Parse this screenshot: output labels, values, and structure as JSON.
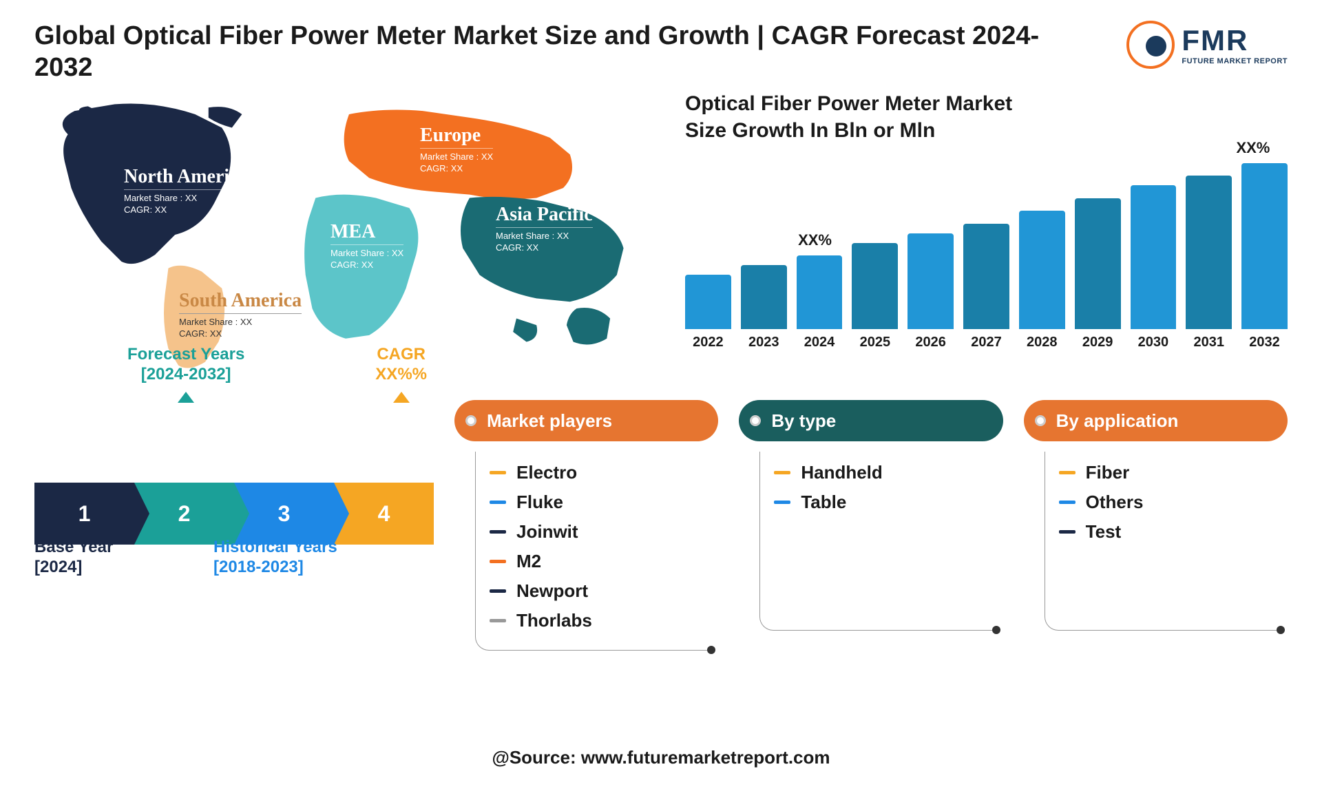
{
  "title": "Global Optical Fiber Power Meter Market Size and Growth | CAGR Forecast 2024-2032",
  "logo": {
    "acronym": "FMR",
    "subtitle": "FUTURE MARKET REPORT"
  },
  "map": {
    "regions": [
      {
        "name": "North America",
        "share": "Market Share : XX",
        "cagr": "CAGR: XX",
        "color": "#1b2845"
      },
      {
        "name": "South America",
        "share": "Market Share : XX",
        "cagr": "CAGR: XX",
        "color": "#f5c38b"
      },
      {
        "name": "Europe",
        "share": "Market Share : XX",
        "cagr": "CAGR: XX",
        "color": "#f37021"
      },
      {
        "name": "MEA",
        "share": "Market Share : XX",
        "cagr": "CAGR: XX",
        "color": "#5cc5c9"
      },
      {
        "name": "Asia Pacific",
        "share": "Market Share : XX",
        "cagr": "CAGR: XX",
        "color": "#1a6b73"
      }
    ]
  },
  "chart": {
    "title": "Optical Fiber Power Meter Market Size Growth In Bln or Mln",
    "type": "bar",
    "years": [
      "2022",
      "2023",
      "2024",
      "2025",
      "2026",
      "2027",
      "2028",
      "2029",
      "2030",
      "2031",
      "2032"
    ],
    "values": [
      85,
      100,
      115,
      135,
      150,
      165,
      185,
      205,
      225,
      240,
      260
    ],
    "ylim": [
      0,
      280
    ],
    "bar_color_primary": "#2196d6",
    "bar_color_secondary": "#1a7fa8",
    "background_color": "#ffffff",
    "bar_width": 0.85,
    "font_size_labels": 20,
    "annotations": [
      {
        "year_index": 2,
        "text": "XX%"
      },
      {
        "year_index": 10,
        "text": "XX%"
      }
    ]
  },
  "timeline": {
    "forecast": {
      "label": "Forecast Years",
      "range": "[2024-2032]",
      "color": "#1ba098"
    },
    "cagr": {
      "label": "CAGR",
      "value": "XX%%",
      "color": "#f5a623"
    },
    "base": {
      "label": "Base Year",
      "range": "[2024]",
      "color": "#1b2845"
    },
    "historical": {
      "label": "Historical Years",
      "range": "[2018-2023]",
      "color": "#1e88e5"
    },
    "segments": [
      {
        "num": "1",
        "color": "#1b2845"
      },
      {
        "num": "2",
        "color": "#1ba098"
      },
      {
        "num": "3",
        "color": "#1e88e5"
      },
      {
        "num": "4",
        "color": "#f5a623"
      }
    ]
  },
  "boxes": [
    {
      "title": "Market players",
      "header_color": "#e67530",
      "items": [
        {
          "text": "Electro",
          "color": "#f5a623"
        },
        {
          "text": "Fluke",
          "color": "#1e88e5"
        },
        {
          "text": "Joinwit",
          "color": "#1b2845"
        },
        {
          "text": "M2",
          "color": "#f37021"
        },
        {
          "text": "Newport",
          "color": "#1b2845"
        },
        {
          "text": "Thorlabs",
          "color": "#999"
        }
      ]
    },
    {
      "title": "By type",
      "header_color": "#1a5e5e",
      "items": [
        {
          "text": "Handheld",
          "color": "#f5a623"
        },
        {
          "text": "Table",
          "color": "#1e88e5"
        }
      ]
    },
    {
      "title": "By application",
      "header_color": "#e67530",
      "items": [
        {
          "text": "Fiber",
          "color": "#f5a623"
        },
        {
          "text": "Others",
          "color": "#1e88e5"
        },
        {
          "text": "Test",
          "color": "#1b2845"
        }
      ]
    }
  ],
  "source": "@Source: www.futuremarketreport.com"
}
